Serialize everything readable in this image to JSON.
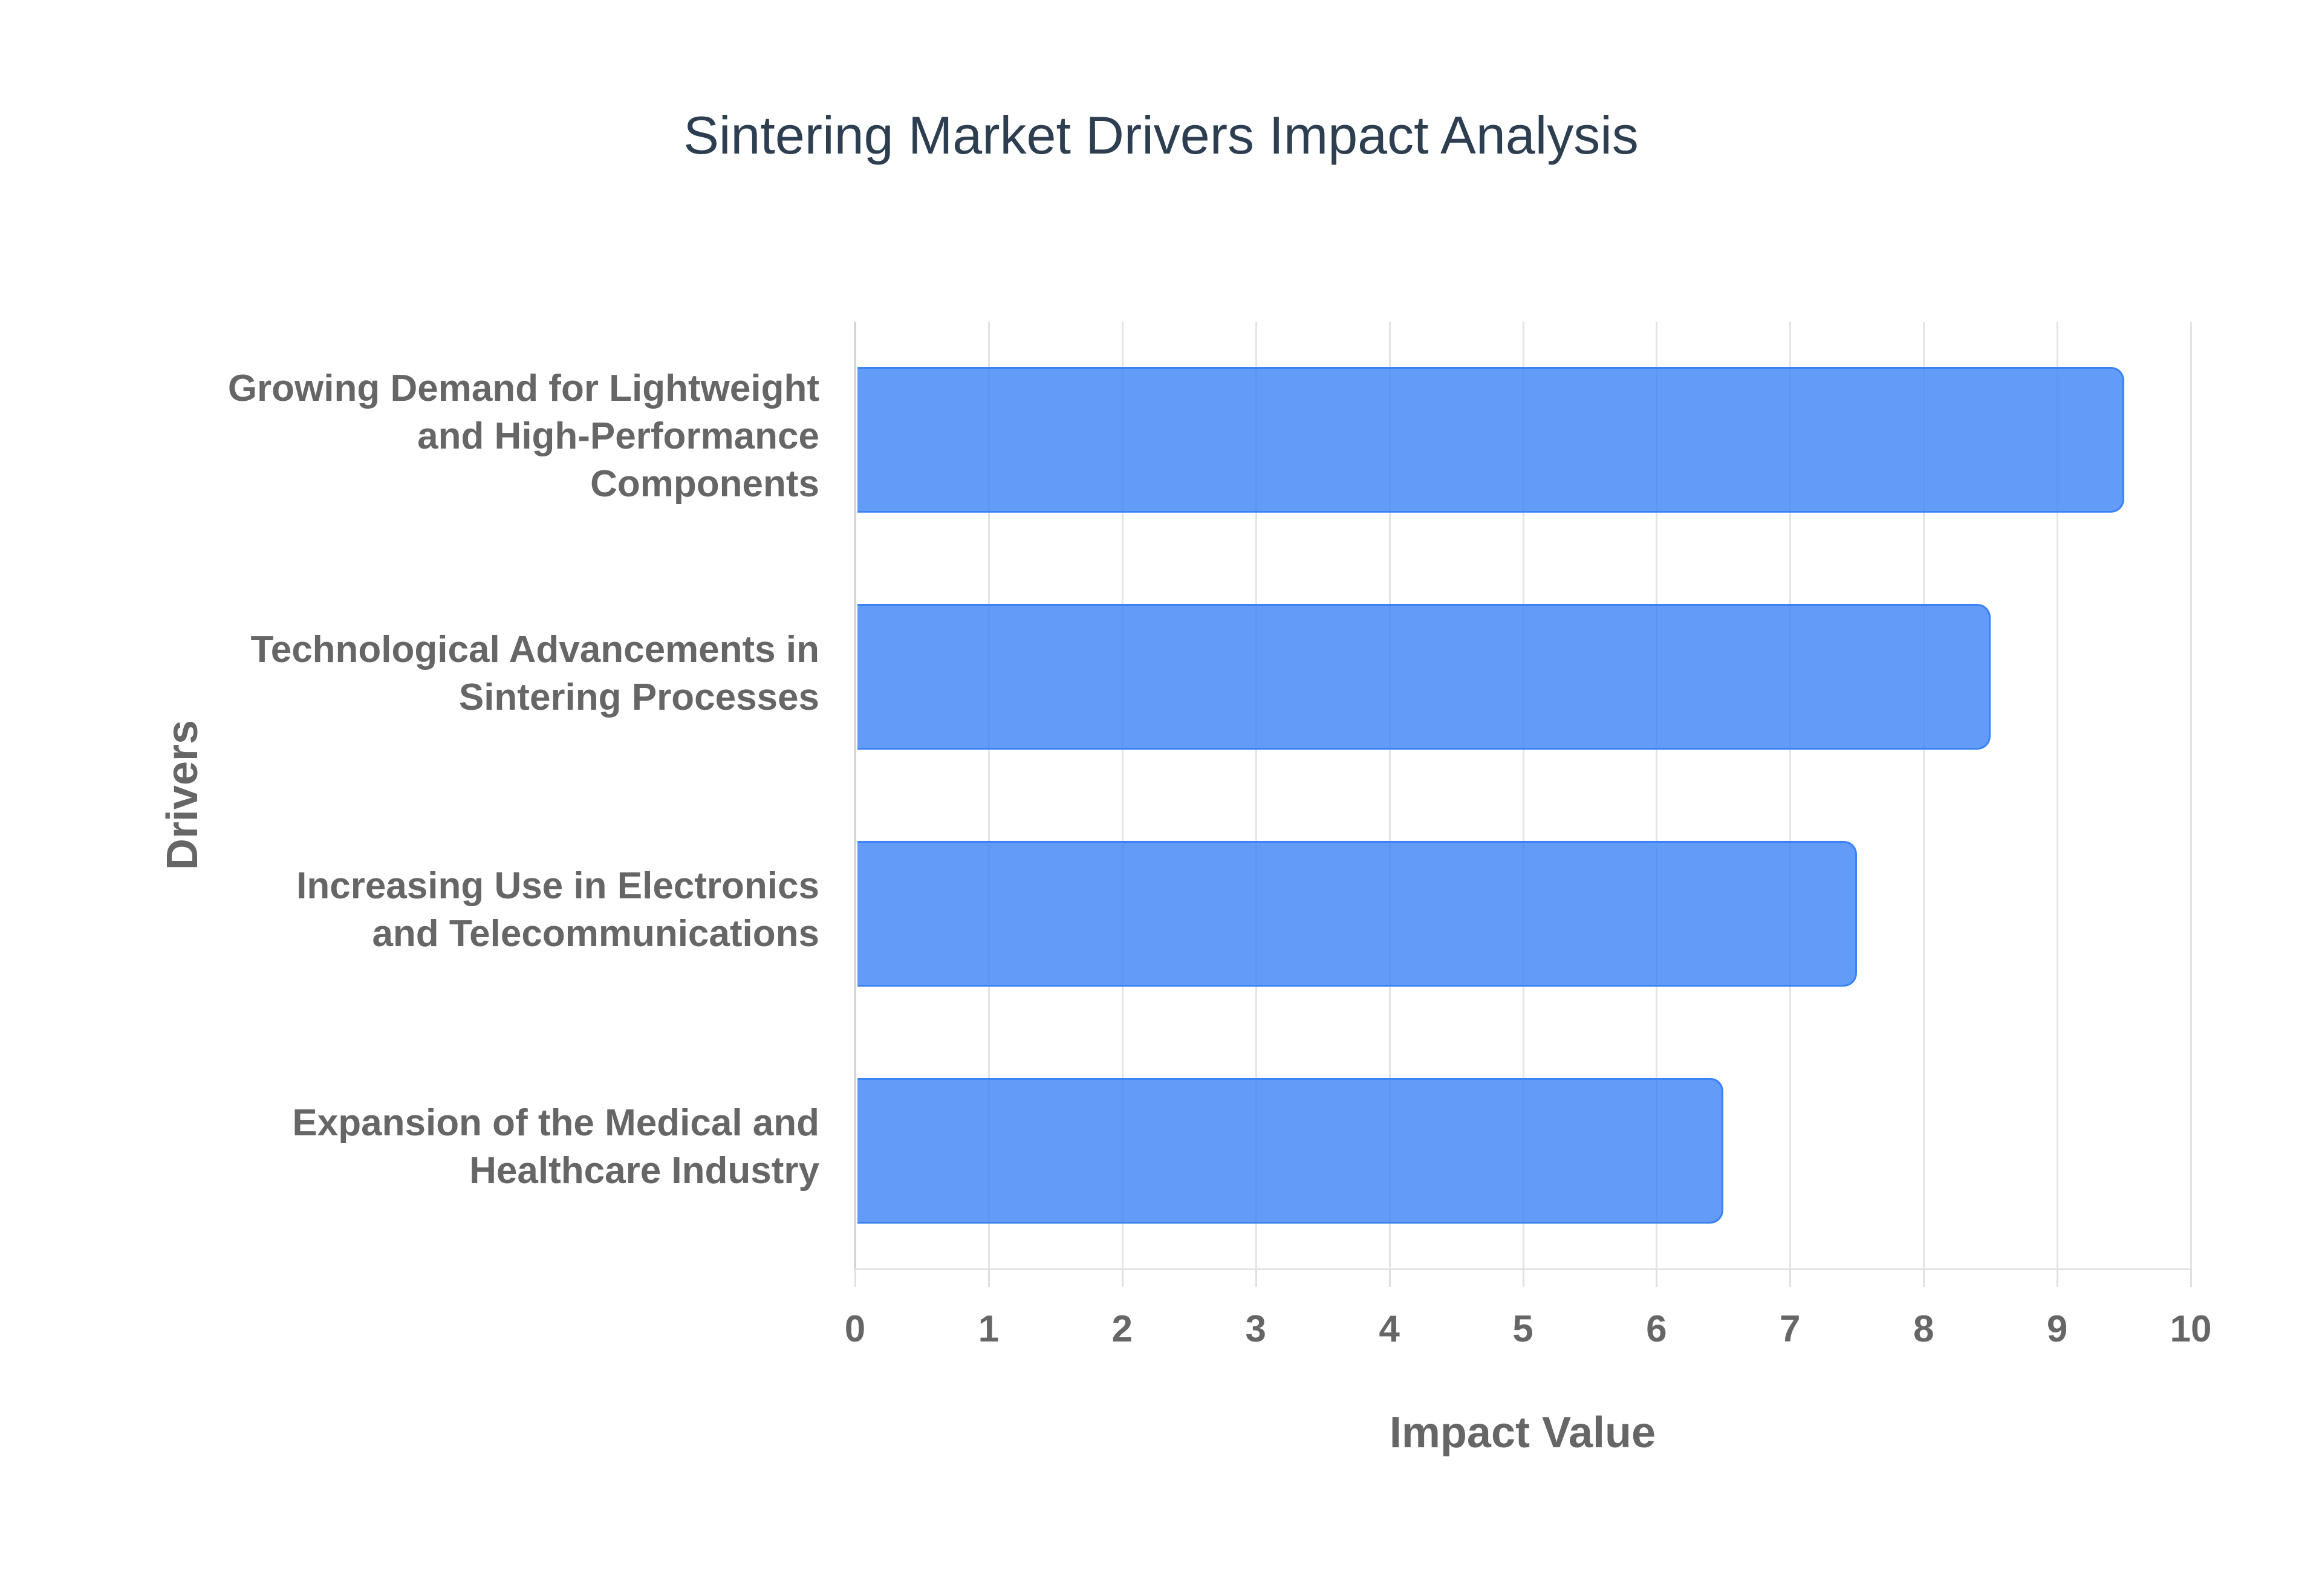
{
  "chart": {
    "title": "Sintering Market Drivers Impact Analysis",
    "xlabel": "Impact Value",
    "ylabel": "Drivers",
    "x_ticks": [
      "0",
      "1",
      "2",
      "3",
      "4",
      "5",
      "6",
      "7",
      "8",
      "9",
      "10"
    ],
    "bar_fill": "#6199F5",
    "bar_border": "#3B82F6",
    "title_color": "#2C3E50",
    "label_color": "#666666",
    "y_labels": [
      [
        "Growing Demand for Lightweight",
        "and High-Performance",
        "Components"
      ],
      [
        "Technological Advancements in",
        "Sintering Processes"
      ],
      [
        "Increasing Use in Electronics",
        "and Telecommunications"
      ],
      [
        "Expansion of the Medical and",
        "Healthcare Industry"
      ]
    ]
  },
  "chart_data": {
    "type": "bar",
    "orientation": "horizontal",
    "title": "Sintering Market Drivers Impact Analysis",
    "xlabel": "Impact Value",
    "ylabel": "Drivers",
    "categories": [
      "Growing Demand for Lightweight and High-Performance Components",
      "Technological Advancements in Sintering Processes",
      "Increasing Use in Electronics and Telecommunications",
      "Expansion of the Medical and Healthcare Industry"
    ],
    "values": [
      9.5,
      8.5,
      7.5,
      6.5
    ],
    "xlim": [
      0,
      10
    ],
    "x_ticks": [
      0,
      1,
      2,
      3,
      4,
      5,
      6,
      7,
      8,
      9,
      10
    ],
    "grid": {
      "vertical": true,
      "horizontal": false
    },
    "legend": null,
    "colors": {
      "bar": "#6199F5",
      "border": "#3B82F6"
    }
  }
}
